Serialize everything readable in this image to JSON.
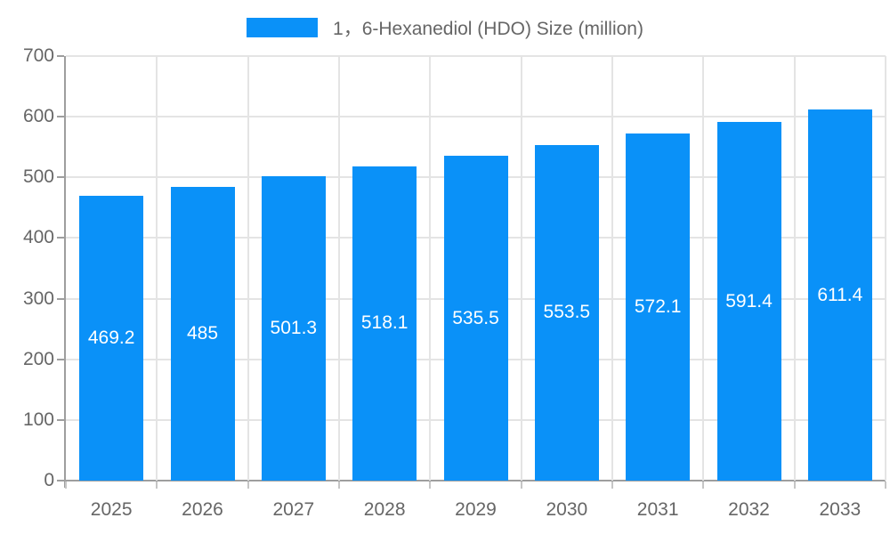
{
  "legend": {
    "label": "1，6-Hexanediol (HDO) Size (million)"
  },
  "colors": {
    "bar": "#0a91f8",
    "axis": "#9e9e9e",
    "grid": "#e4e4e4",
    "text": "#666666",
    "bar_label": "#ffffff",
    "background": "#ffffff"
  },
  "chart_data": {
    "type": "bar",
    "title": "1，6-Hexanediol (HDO) Size (million)",
    "categories": [
      "2025",
      "2026",
      "2027",
      "2028",
      "2029",
      "2030",
      "2031",
      "2032",
      "2033"
    ],
    "series": [
      {
        "name": "1，6-Hexanediol (HDO) Size (million)",
        "values": [
          469.2,
          485,
          501.3,
          518.1,
          535.5,
          553.5,
          572.1,
          591.4,
          611.4
        ]
      }
    ],
    "values": [
      469.2,
      485,
      501.3,
      518.1,
      535.5,
      553.5,
      572.1,
      591.4,
      611.4
    ],
    "xlabel": "",
    "ylabel": "",
    "ylim": [
      0,
      700
    ],
    "yticks": [
      0,
      100,
      200,
      300,
      400,
      500,
      600,
      700
    ],
    "grid": true,
    "legend_position": "top-center",
    "bar_label_position": "middle"
  }
}
